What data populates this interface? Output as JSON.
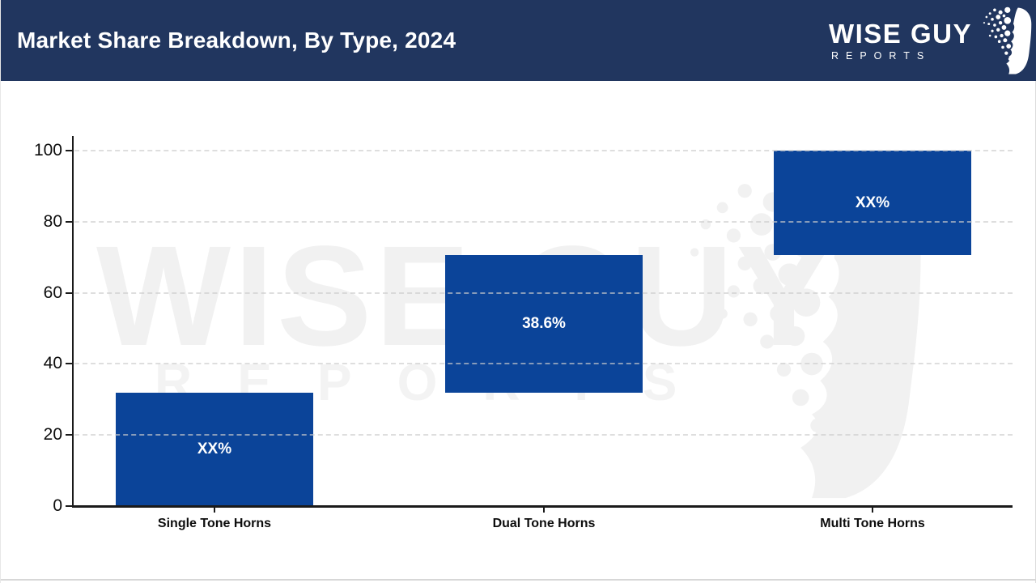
{
  "header": {
    "title": "Market Share Breakdown, By Type, 2024",
    "logo": {
      "brand": "WISE GUY",
      "sub": "REPORTS"
    }
  },
  "watermark": {
    "brand": "WISE GUY",
    "sub": "REPORTS"
  },
  "chart_data": {
    "type": "bar",
    "subtype": "floating-segment-market-share",
    "title": "Market Share Breakdown, By Type, 2024",
    "categories": [
      "Single Tone Horns",
      "Dual Tone Horns",
      "Multi Tone Horns"
    ],
    "series": [
      {
        "name": "Single Tone Horns",
        "start": 0,
        "end": 32,
        "value": 32,
        "value_label": "XX%"
      },
      {
        "name": "Dual Tone Horns",
        "start": 32,
        "end": 70.6,
        "value": 38.6,
        "value_label": "38.6%"
      },
      {
        "name": "Multi Tone Horns",
        "start": 70.6,
        "end": 100,
        "value": 29.4,
        "value_label": "XX%"
      }
    ],
    "xlabel": "",
    "ylabel": "",
    "y_ticks": [
      0,
      20,
      40,
      60,
      80,
      100
    ],
    "ylim": [
      0,
      104
    ],
    "grid": "horizontal-dashed",
    "legend": "none",
    "bar_color": "#0b4499",
    "bar_label_color": "#ffffff"
  },
  "colors": {
    "header_bg": "#21365f",
    "axis": "#1a1a1a",
    "grid": "#cccccc",
    "watermark": "#f1f1f1",
    "frame_line": "#d7d7d7"
  }
}
